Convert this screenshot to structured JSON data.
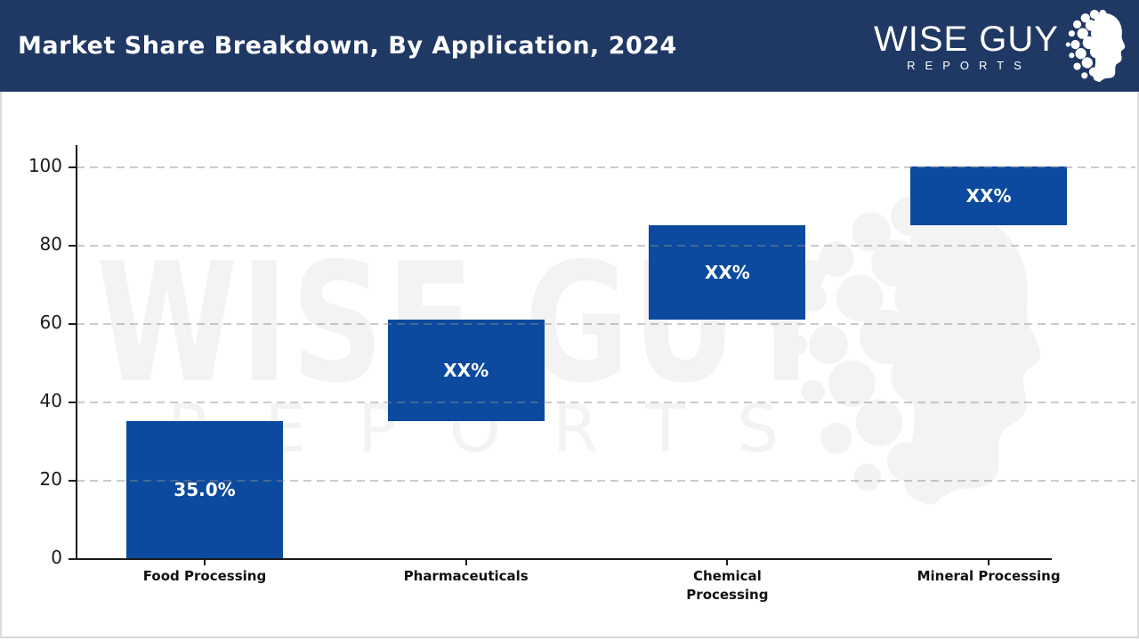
{
  "header": {
    "title": "Market Share Breakdown, By Application, 2024",
    "bg_color": "#1f3864",
    "logo": {
      "line1": "WISE GUY",
      "line2": "REPORTS"
    }
  },
  "watermark": {
    "line1": "WISE GUY",
    "line2": "REPORTS"
  },
  "chart_data": {
    "type": "bar",
    "subtype": "waterfall",
    "title": "Market Share Breakdown, By Application, 2024",
    "categories": [
      "Food Processing",
      "Pharmaceuticals",
      "Chemical Processing",
      "Mineral Processing"
    ],
    "tick_labels": [
      "Food Processing",
      "Pharmaceuticals",
      "Chemical\nProcessing",
      "Mineral Processing"
    ],
    "segments": [
      {
        "category": "Food Processing",
        "start": 0,
        "end": 35,
        "label": "35.0%"
      },
      {
        "category": "Pharmaceuticals",
        "start": 35,
        "end": 61,
        "label": "XX%"
      },
      {
        "category": "Chemical Processing",
        "start": 61,
        "end": 85,
        "label": "XX%"
      },
      {
        "category": "Mineral Processing",
        "start": 85,
        "end": 100,
        "label": "XX%"
      }
    ],
    "ylim": [
      0,
      100
    ],
    "yticks": [
      0,
      20,
      40,
      60,
      80,
      100
    ],
    "xlabel": "",
    "ylabel": "",
    "grid": "horizontal-dashed",
    "legend": "none",
    "bar_color": "#0b4a9e",
    "bar_label_color": "#ffffff",
    "grid_color": "#d2d2d2",
    "axis_color": "#1a1a1a"
  }
}
